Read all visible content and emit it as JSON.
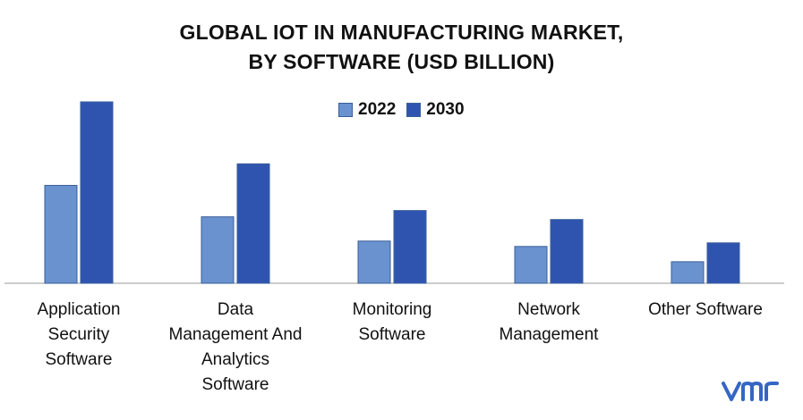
{
  "chart_data": {
    "type": "bar",
    "title_line1": "GLOBAL IOT IN MANUFACTURING MARKET,",
    "title_line2": "BY SOFTWARE (USD BILLION)",
    "categories": [
      "Application Security Software",
      "Data Management And Analytics Software",
      "Monitoring Software",
      "Network Management",
      "Other Software"
    ],
    "category_lines": [
      [
        "Application",
        "Security",
        "Software"
      ],
      [
        "Data",
        "Management And",
        "Analytics",
        "Software"
      ],
      [
        "Monitoring",
        "Software"
      ],
      [
        "Network",
        "Management"
      ],
      [
        "Other Software"
      ]
    ],
    "series": [
      {
        "name": "2022",
        "values": [
          10.9,
          7.4,
          4.7,
          4.1,
          2.4
        ],
        "color": "#6a92cf"
      },
      {
        "name": "2030",
        "values": [
          20.2,
          13.3,
          8.1,
          7.1,
          4.5
        ],
        "color": "#2f54b0"
      }
    ],
    "ylim": [
      0,
      20.2
    ],
    "legend_position": "top-center",
    "grid": false
  },
  "logo_text": "vmr"
}
